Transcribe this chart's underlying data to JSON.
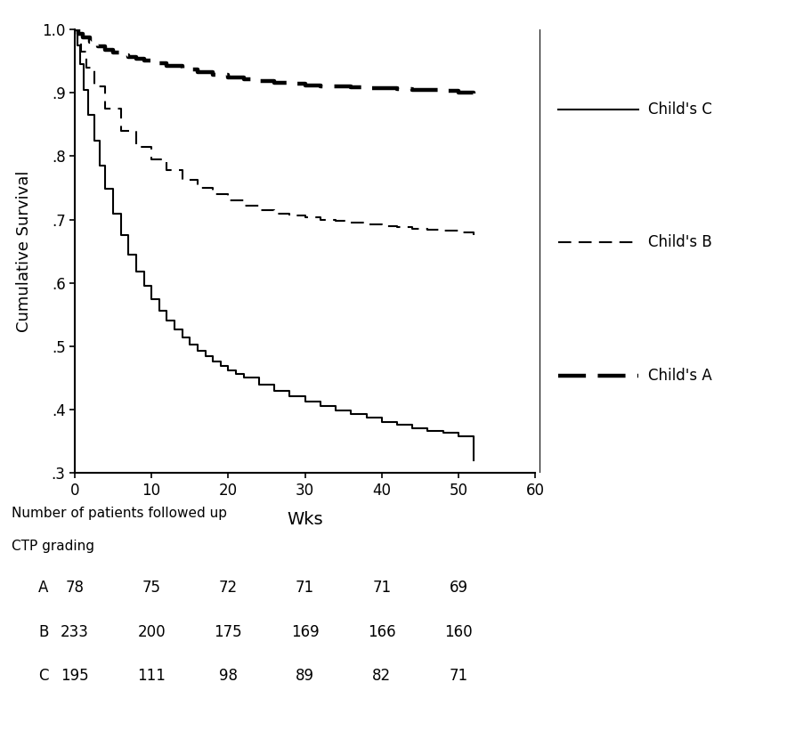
{
  "title": "",
  "xlabel": "Wks",
  "ylabel": "Cumulative Survival",
  "xlim": [
    0,
    60
  ],
  "ylim": [
    0.3,
    1.0
  ],
  "yticks": [
    0.3,
    0.4,
    0.5,
    0.6,
    0.7,
    0.8,
    0.9,
    1.0
  ],
  "ytick_labels": [
    ".3",
    ".4",
    ".5",
    ".6",
    ".7",
    ".8",
    ".9",
    "1.0"
  ],
  "xticks": [
    0,
    10,
    20,
    30,
    40,
    50,
    60
  ],
  "childA_x": [
    0,
    0.5,
    1,
    2,
    3,
    4,
    5,
    6,
    7,
    8,
    9,
    10,
    12,
    14,
    16,
    18,
    20,
    22,
    24,
    26,
    28,
    30,
    32,
    34,
    36,
    38,
    40,
    42,
    44,
    46,
    48,
    50,
    52
  ],
  "childA_y": [
    1.0,
    0.993,
    0.987,
    0.98,
    0.974,
    0.968,
    0.964,
    0.96,
    0.957,
    0.954,
    0.951,
    0.947,
    0.942,
    0.937,
    0.933,
    0.929,
    0.925,
    0.922,
    0.919,
    0.916,
    0.914,
    0.912,
    0.911,
    0.91,
    0.909,
    0.908,
    0.907,
    0.906,
    0.905,
    0.904,
    0.903,
    0.9,
    0.882
  ],
  "childB_x": [
    0,
    0.3,
    0.8,
    1.5,
    2.5,
    4,
    6,
    8,
    10,
    12,
    14,
    16,
    18,
    20,
    22,
    24,
    26,
    28,
    30,
    32,
    34,
    36,
    38,
    40,
    42,
    44,
    46,
    48,
    50,
    52
  ],
  "childB_y": [
    1.0,
    0.985,
    0.965,
    0.94,
    0.91,
    0.875,
    0.84,
    0.815,
    0.795,
    0.778,
    0.763,
    0.75,
    0.74,
    0.73,
    0.722,
    0.715,
    0.71,
    0.706,
    0.703,
    0.7,
    0.698,
    0.695,
    0.692,
    0.69,
    0.688,
    0.686,
    0.684,
    0.682,
    0.68,
    0.675
  ],
  "childC_x": [
    0,
    0.3,
    0.7,
    1.2,
    1.8,
    2.5,
    3.2,
    4,
    5,
    6,
    7,
    8,
    9,
    10,
    11,
    12,
    13,
    14,
    15,
    16,
    17,
    18,
    19,
    20,
    21,
    22,
    24,
    26,
    28,
    30,
    32,
    34,
    36,
    38,
    40,
    42,
    44,
    46,
    48,
    50,
    52
  ],
  "childC_y": [
    1.0,
    0.975,
    0.945,
    0.905,
    0.865,
    0.825,
    0.785,
    0.748,
    0.71,
    0.675,
    0.645,
    0.618,
    0.595,
    0.574,
    0.556,
    0.54,
    0.526,
    0.514,
    0.503,
    0.493,
    0.484,
    0.476,
    0.469,
    0.462,
    0.456,
    0.45,
    0.44,
    0.43,
    0.421,
    0.413,
    0.406,
    0.399,
    0.393,
    0.387,
    0.381,
    0.376,
    0.371,
    0.367,
    0.363,
    0.358,
    0.32
  ],
  "table_header": "Number of patients followed up",
  "table_subheader": "CTP grading",
  "table_row_labels": [
    "A",
    "B",
    "C"
  ],
  "table_col_timepoints": [
    0,
    10,
    20,
    30,
    40,
    50
  ],
  "table_data": [
    [
      78,
      75,
      72,
      71,
      71,
      69
    ],
    [
      233,
      200,
      175,
      169,
      166,
      160
    ],
    [
      195,
      111,
      98,
      89,
      82,
      71
    ]
  ],
  "background_color": "#ffffff",
  "line_color": "#000000"
}
